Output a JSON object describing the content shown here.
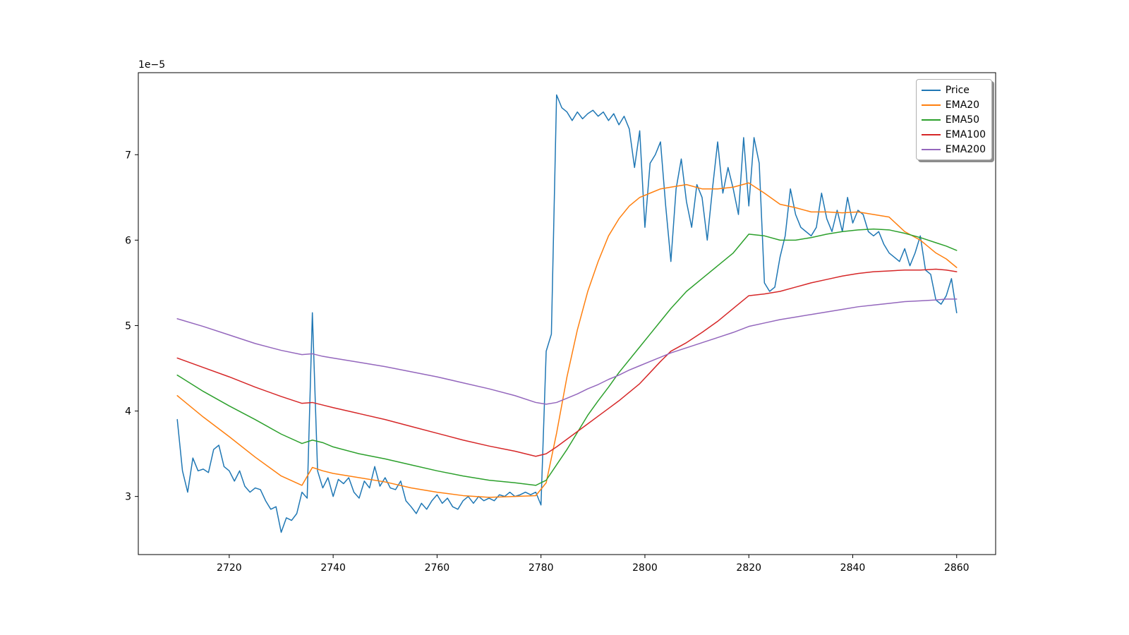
{
  "figure": {
    "background": "#ffffff"
  },
  "chart_data": {
    "type": "line",
    "title": "",
    "xlabel": "",
    "ylabel": "",
    "y_offset_text": "1e−5",
    "grid": false,
    "xlim": [
      2702.5,
      2867.5
    ],
    "ylim": [
      2.32,
      7.96
    ],
    "x_ticks": [
      2720,
      2740,
      2760,
      2780,
      2800,
      2820,
      2840,
      2860
    ],
    "y_ticks": [
      3,
      4,
      5,
      6,
      7
    ],
    "legend": {
      "position": "upper right",
      "entries": [
        "Price",
        "EMA20",
        "EMA50",
        "EMA100",
        "EMA200"
      ]
    },
    "series": [
      {
        "name": "Price",
        "color": "#1f77b4",
        "x_start": 2710,
        "x_step": 1,
        "values": [
          3.9,
          3.3,
          3.05,
          3.45,
          3.3,
          3.32,
          3.28,
          3.55,
          3.6,
          3.35,
          3.3,
          3.18,
          3.3,
          3.12,
          3.05,
          3.1,
          3.08,
          2.95,
          2.85,
          2.88,
          2.58,
          2.75,
          2.72,
          2.8,
          3.05,
          2.98,
          5.15,
          3.3,
          3.1,
          3.22,
          3.0,
          3.2,
          3.15,
          3.22,
          3.05,
          2.98,
          3.18,
          3.1,
          3.35,
          3.12,
          3.22,
          3.1,
          3.08,
          3.18,
          2.95,
          2.88,
          2.8,
          2.92,
          2.85,
          2.95,
          3.02,
          2.92,
          2.98,
          2.88,
          2.85,
          2.95,
          3.0,
          2.92,
          3.0,
          2.95,
          2.98,
          2.95,
          3.02,
          3.0,
          3.05,
          3.0,
          3.02,
          3.05,
          3.02,
          3.05,
          2.9,
          4.7,
          4.9,
          7.7,
          7.55,
          7.5,
          7.4,
          7.5,
          7.42,
          7.48,
          7.52,
          7.45,
          7.5,
          7.4,
          7.48,
          7.35,
          7.45,
          7.3,
          6.85,
          7.28,
          6.15,
          6.9,
          7.0,
          7.15,
          6.4,
          5.75,
          6.6,
          6.95,
          6.45,
          6.15,
          6.65,
          6.5,
          6.0,
          6.6,
          7.15,
          6.55,
          6.85,
          6.6,
          6.3,
          7.2,
          6.4,
          7.2,
          6.9,
          5.5,
          5.4,
          5.45,
          5.8,
          6.05,
          6.6,
          6.3,
          6.15,
          6.1,
          6.05,
          6.15,
          6.55,
          6.25,
          6.1,
          6.35,
          6.1,
          6.5,
          6.2,
          6.35,
          6.3,
          6.1,
          6.05,
          6.1,
          5.95,
          5.85,
          5.8,
          5.75,
          5.9,
          5.7,
          5.85,
          6.05,
          5.65,
          5.6,
          5.3,
          5.25,
          5.35,
          5.55,
          5.15
        ]
      },
      {
        "name": "EMA20",
        "color": "#ff7f0e",
        "x": [
          2710,
          2715,
          2720,
          2725,
          2730,
          2734,
          2736,
          2738,
          2740,
          2745,
          2750,
          2755,
          2760,
          2765,
          2770,
          2775,
          2779,
          2781,
          2783,
          2785,
          2787,
          2789,
          2791,
          2793,
          2795,
          2797,
          2799,
          2801,
          2803,
          2805,
          2808,
          2811,
          2814,
          2817,
          2820,
          2823,
          2826,
          2829,
          2832,
          2835,
          2838,
          2841,
          2844,
          2847,
          2850,
          2853,
          2856,
          2858,
          2860
        ],
        "values": [
          4.18,
          3.93,
          3.7,
          3.46,
          3.24,
          3.13,
          3.34,
          3.3,
          3.27,
          3.22,
          3.17,
          3.1,
          3.05,
          3.01,
          2.99,
          3.0,
          3.01,
          3.16,
          3.74,
          4.4,
          4.95,
          5.4,
          5.75,
          6.05,
          6.25,
          6.4,
          6.5,
          6.55,
          6.6,
          6.62,
          6.65,
          6.6,
          6.6,
          6.62,
          6.67,
          6.55,
          6.42,
          6.38,
          6.33,
          6.33,
          6.32,
          6.33,
          6.3,
          6.27,
          6.1,
          6.0,
          5.85,
          5.78,
          5.68
        ]
      },
      {
        "name": "EMA50",
        "color": "#2ca02c",
        "x": [
          2710,
          2715,
          2720,
          2725,
          2730,
          2734,
          2736,
          2738,
          2740,
          2745,
          2750,
          2755,
          2760,
          2765,
          2770,
          2775,
          2779,
          2781,
          2783,
          2785,
          2787,
          2789,
          2791,
          2793,
          2795,
          2797,
          2799,
          2801,
          2803,
          2805,
          2808,
          2811,
          2814,
          2817,
          2820,
          2823,
          2826,
          2829,
          2832,
          2835,
          2838,
          2841,
          2844,
          2847,
          2850,
          2853,
          2856,
          2858,
          2860
        ],
        "values": [
          4.42,
          4.23,
          4.06,
          3.9,
          3.73,
          3.62,
          3.66,
          3.63,
          3.58,
          3.5,
          3.44,
          3.37,
          3.3,
          3.24,
          3.19,
          3.16,
          3.13,
          3.19,
          3.37,
          3.55,
          3.75,
          3.95,
          4.12,
          4.28,
          4.45,
          4.6,
          4.75,
          4.9,
          5.05,
          5.2,
          5.4,
          5.55,
          5.7,
          5.85,
          6.07,
          6.05,
          6.0,
          6.0,
          6.03,
          6.07,
          6.1,
          6.12,
          6.13,
          6.12,
          6.08,
          6.03,
          5.97,
          5.93,
          5.88
        ]
      },
      {
        "name": "EMA100",
        "color": "#d62728",
        "x": [
          2710,
          2715,
          2720,
          2725,
          2730,
          2734,
          2736,
          2738,
          2740,
          2745,
          2750,
          2755,
          2760,
          2765,
          2770,
          2775,
          2779,
          2781,
          2783,
          2785,
          2787,
          2789,
          2791,
          2793,
          2795,
          2797,
          2799,
          2801,
          2803,
          2805,
          2808,
          2811,
          2814,
          2817,
          2820,
          2823,
          2826,
          2829,
          2832,
          2835,
          2838,
          2841,
          2844,
          2847,
          2850,
          2853,
          2856,
          2858,
          2860
        ],
        "values": [
          4.62,
          4.51,
          4.4,
          4.28,
          4.17,
          4.09,
          4.1,
          4.07,
          4.04,
          3.97,
          3.9,
          3.82,
          3.74,
          3.66,
          3.59,
          3.53,
          3.47,
          3.5,
          3.58,
          3.67,
          3.76,
          3.85,
          3.94,
          4.03,
          4.12,
          4.22,
          4.32,
          4.45,
          4.58,
          4.7,
          4.8,
          4.92,
          5.05,
          5.2,
          5.35,
          5.37,
          5.4,
          5.45,
          5.5,
          5.54,
          5.58,
          5.61,
          5.63,
          5.64,
          5.65,
          5.65,
          5.66,
          5.65,
          5.63
        ]
      },
      {
        "name": "EMA200",
        "color": "#9467bd",
        "x": [
          2710,
          2715,
          2720,
          2725,
          2730,
          2734,
          2736,
          2738,
          2740,
          2745,
          2750,
          2755,
          2760,
          2765,
          2770,
          2775,
          2779,
          2781,
          2783,
          2785,
          2787,
          2789,
          2791,
          2793,
          2795,
          2797,
          2799,
          2801,
          2803,
          2805,
          2808,
          2811,
          2814,
          2817,
          2820,
          2823,
          2826,
          2829,
          2832,
          2835,
          2838,
          2841,
          2844,
          2847,
          2850,
          2853,
          2856,
          2858,
          2860
        ],
        "values": [
          5.08,
          4.99,
          4.89,
          4.79,
          4.71,
          4.66,
          4.67,
          4.64,
          4.62,
          4.57,
          4.52,
          4.46,
          4.4,
          4.33,
          4.26,
          4.18,
          4.1,
          4.08,
          4.1,
          4.15,
          4.2,
          4.26,
          4.31,
          4.37,
          4.42,
          4.48,
          4.53,
          4.58,
          4.63,
          4.68,
          4.74,
          4.8,
          4.86,
          4.92,
          4.99,
          5.03,
          5.07,
          5.1,
          5.13,
          5.16,
          5.19,
          5.22,
          5.24,
          5.26,
          5.28,
          5.29,
          5.3,
          5.31,
          5.31
        ]
      }
    ]
  }
}
